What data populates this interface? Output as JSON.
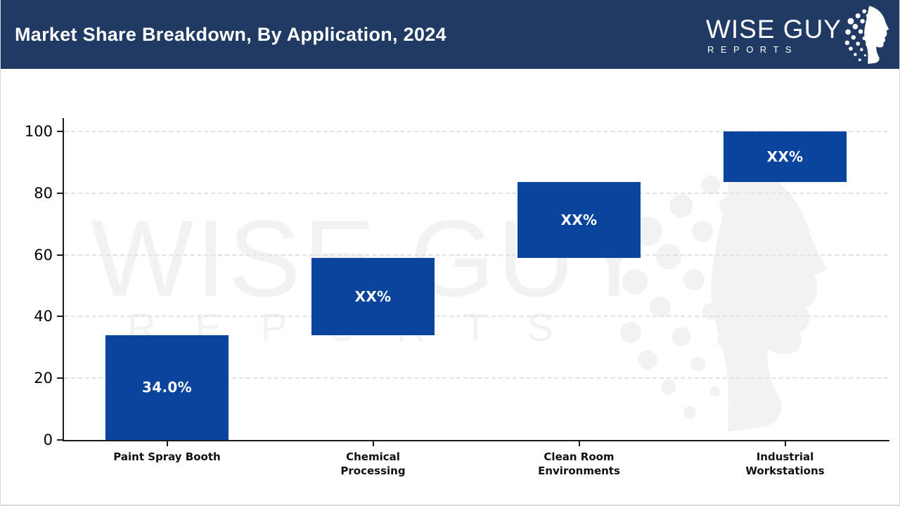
{
  "header": {
    "title": "Market Share Breakdown, By Application, 2024",
    "bg_color": "#213a63",
    "logo": {
      "wordmark": "WISE GUY",
      "subtext": "REPORTS"
    }
  },
  "watermark": {
    "wordmark": "WISE GUY",
    "subtext": "REPORTS"
  },
  "chart_data": {
    "type": "bar",
    "variant": "waterfall",
    "title": "Market Share Breakdown, By Application, 2024",
    "categories": [
      "Paint Spray Booth",
      "Chemical Processing",
      "Clean Room Environments",
      "Industrial Workstations"
    ],
    "segments": [
      {
        "category_lines": [
          "Paint Spray Booth"
        ],
        "start": 0,
        "end": 34,
        "label": "34.0%"
      },
      {
        "category_lines": [
          "Chemical",
          "Processing"
        ],
        "start": 34,
        "end": 59,
        "label": "XX%"
      },
      {
        "category_lines": [
          "Clean Room",
          "Environments"
        ],
        "start": 59,
        "end": 83.5,
        "label": "XX%"
      },
      {
        "category_lines": [
          "Industrial",
          "Workstations"
        ],
        "start": 83.5,
        "end": 100,
        "label": "XX%"
      }
    ],
    "yticks": [
      0,
      20,
      40,
      60,
      80,
      100
    ],
    "ylim": [
      0,
      100
    ],
    "bar_color": "#0a449c",
    "bar_label_color": "#ffffff",
    "grid": "horizontal-dashed",
    "legend_position": "none"
  }
}
